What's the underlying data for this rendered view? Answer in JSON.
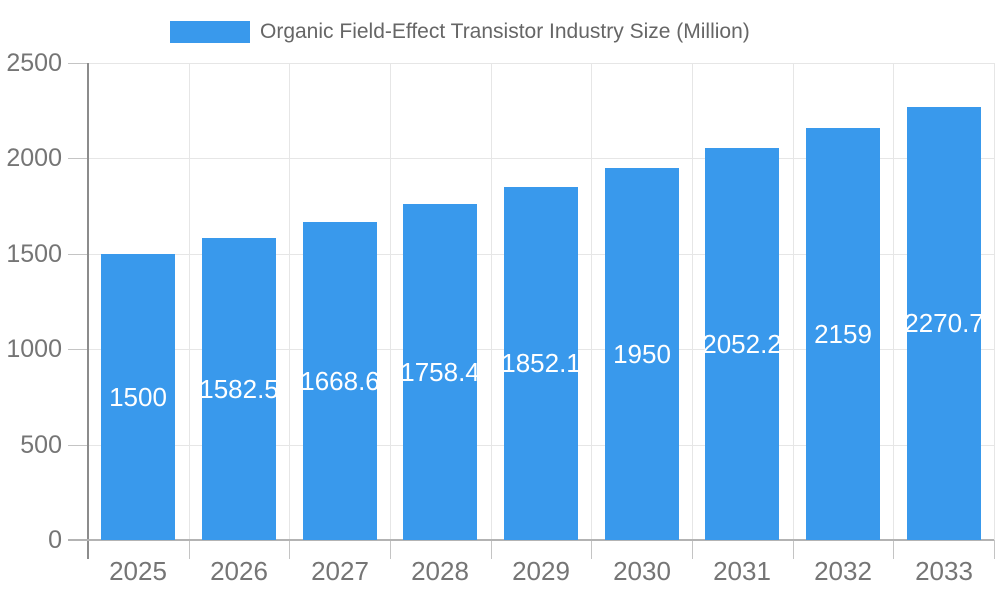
{
  "legend": {
    "label": "Organic Field-Effect Transistor Industry Size (Million)"
  },
  "chart_data": {
    "type": "bar",
    "title": "Organic Field-Effect Transistor Industry Size (Million)",
    "categories": [
      "2025",
      "2026",
      "2027",
      "2028",
      "2029",
      "2030",
      "2031",
      "2032",
      "2033"
    ],
    "values": [
      1500,
      1582.5,
      1668.6,
      1758.4,
      1852.1,
      1950,
      2052.2,
      2159,
      2270.7
    ],
    "value_labels": [
      "1500",
      "1582.5",
      "1668.6",
      "1758.4",
      "1852.1",
      "1950",
      "2052.2",
      "2159",
      "2270.7"
    ],
    "xlabel": "",
    "ylabel": "",
    "ylim": [
      0,
      2500
    ],
    "yticks": [
      0,
      500,
      1000,
      1500,
      2000,
      2500
    ],
    "ytick_labels": [
      "0",
      "500",
      "1000",
      "1500",
      "2000",
      "2500"
    ],
    "grid": true,
    "legend_position": "top",
    "colors": {
      "bar": "#3999EC",
      "grid": "#e6e6e6",
      "axis_line_y": "#8c8c8c",
      "axis_line_x": "#b3b3b3",
      "tick": "#c4c4c4",
      "axis_text": "#757575",
      "legend_text": "#666666",
      "value_text": "#ffffff",
      "background": "#ffffff"
    }
  }
}
